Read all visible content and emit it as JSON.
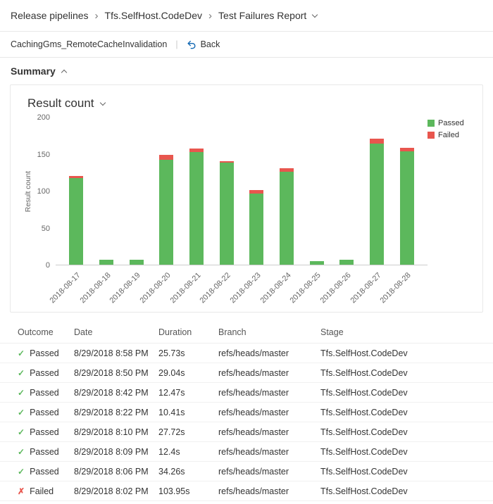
{
  "breadcrumb": {
    "items": [
      "Release pipelines",
      "Tfs.SelfHost.CodeDev",
      "Test Failures Report"
    ],
    "separator": "›"
  },
  "toolbar": {
    "pipeline_name": "CachingGms_RemoteCacheInvalidation",
    "divider": "|",
    "back_label": "Back"
  },
  "summary": {
    "label": "Summary"
  },
  "chart_data": {
    "type": "bar",
    "stacked": true,
    "title": "Result count",
    "ylabel": "Result count",
    "xlabel": "",
    "ylim": [
      0,
      200
    ],
    "yticks": [
      0,
      50,
      100,
      150,
      200
    ],
    "legend_position": "top-right",
    "grid": false,
    "categories": [
      "2018-08-17",
      "2018-08-18",
      "2018-08-19",
      "2018-08-20",
      "2018-08-21",
      "2018-08-22",
      "2018-08-23",
      "2018-08-24",
      "2018-08-25",
      "2018-08-26",
      "2018-08-27",
      "2018-08-28"
    ],
    "series": [
      {
        "name": "Passed",
        "color": "#5cb85c",
        "values": [
          118,
          7,
          7,
          143,
          153,
          139,
          97,
          126,
          5,
          7,
          165,
          154
        ]
      },
      {
        "name": "Failed",
        "color": "#e8564e",
        "values": [
          3,
          0,
          0,
          6,
          5,
          2,
          4,
          5,
          0,
          0,
          6,
          5
        ]
      }
    ]
  },
  "table": {
    "columns": [
      "Outcome",
      "Date",
      "Duration",
      "Branch",
      "Stage"
    ],
    "outcome_colors": {
      "Passed": "#5cb85c",
      "Failed": "#e8564e"
    },
    "rows": [
      {
        "outcome": "Passed",
        "date": "8/29/2018 8:58 PM",
        "duration": "25.73s",
        "branch": "refs/heads/master",
        "stage": "Tfs.SelfHost.CodeDev"
      },
      {
        "outcome": "Passed",
        "date": "8/29/2018 8:50 PM",
        "duration": "29.04s",
        "branch": "refs/heads/master",
        "stage": "Tfs.SelfHost.CodeDev"
      },
      {
        "outcome": "Passed",
        "date": "8/29/2018 8:42 PM",
        "duration": "12.47s",
        "branch": "refs/heads/master",
        "stage": "Tfs.SelfHost.CodeDev"
      },
      {
        "outcome": "Passed",
        "date": "8/29/2018 8:22 PM",
        "duration": "10.41s",
        "branch": "refs/heads/master",
        "stage": "Tfs.SelfHost.CodeDev"
      },
      {
        "outcome": "Passed",
        "date": "8/29/2018 8:10 PM",
        "duration": "27.72s",
        "branch": "refs/heads/master",
        "stage": "Tfs.SelfHost.CodeDev"
      },
      {
        "outcome": "Passed",
        "date": "8/29/2018 8:09 PM",
        "duration": "12.4s",
        "branch": "refs/heads/master",
        "stage": "Tfs.SelfHost.CodeDev"
      },
      {
        "outcome": "Passed",
        "date": "8/29/2018 8:06 PM",
        "duration": "34.26s",
        "branch": "refs/heads/master",
        "stage": "Tfs.SelfHost.CodeDev"
      },
      {
        "outcome": "Failed",
        "date": "8/29/2018 8:02 PM",
        "duration": "103.95s",
        "branch": "refs/heads/master",
        "stage": "Tfs.SelfHost.CodeDev"
      }
    ]
  }
}
